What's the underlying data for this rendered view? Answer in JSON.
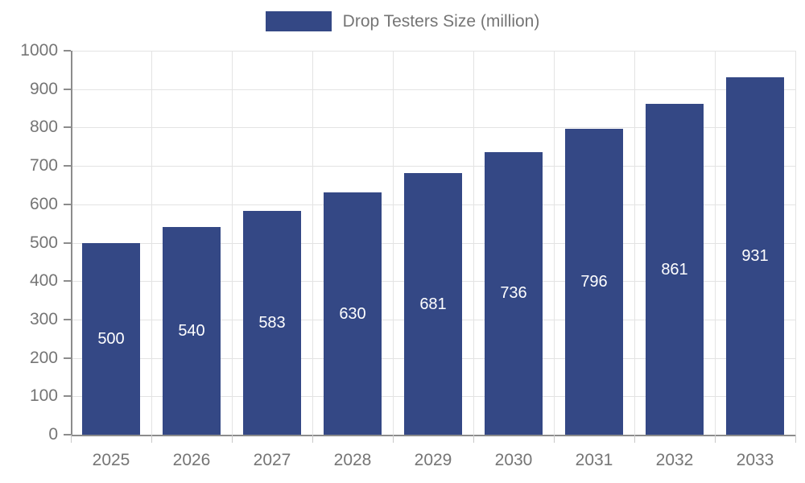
{
  "chart_data": {
    "type": "bar",
    "title": "Drop Testers Size (million)",
    "legend": [
      "Drop Testers Size (million)"
    ],
    "legend_position": "top-center",
    "categories": [
      "2025",
      "2026",
      "2027",
      "2028",
      "2029",
      "2030",
      "2031",
      "2032",
      "2033"
    ],
    "values": [
      500,
      540,
      583,
      630,
      681,
      736,
      796,
      861,
      931
    ],
    "xlabel": "",
    "ylabel": "",
    "ylim": [
      0,
      1000
    ],
    "ytick_step": 100,
    "ytick_labels": [
      "0",
      "100",
      "200",
      "300",
      "400",
      "500",
      "600",
      "700",
      "800",
      "900",
      "1000"
    ],
    "grid": "on",
    "bar_label_color": "#ffffff",
    "colors": {
      "bar": "#344885",
      "grid": "#e3e3e3",
      "axis": "#8c8c8c",
      "tick_text": "#757575",
      "background": "#ffffff"
    }
  }
}
